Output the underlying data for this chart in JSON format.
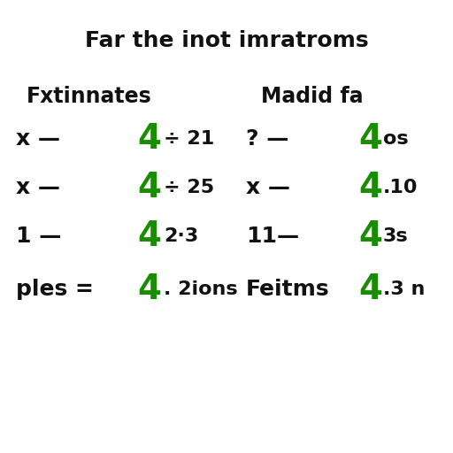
{
  "title": "Far the inot imratroms",
  "col1_header": "Fxtinnates",
  "col2_header": "Madid fa",
  "background_color": "#ffffff",
  "black_color": "#111111",
  "green_color": "#1a8c00",
  "rows": [
    {
      "left_prefix": "x —",
      "left_green": "4",
      "left_suffix": "÷ 21",
      "right_prefix": "? —",
      "right_green": "4",
      "right_suffix": "os"
    },
    {
      "left_prefix": "x —",
      "left_green": "4",
      "left_suffix": "÷ 25",
      "right_prefix": "x —",
      "right_green": "4",
      "right_suffix": ".10"
    },
    {
      "left_prefix": "1 —",
      "left_green": "4",
      "left_suffix": "2⋅3",
      "right_prefix": "11—",
      "right_green": "4",
      "right_suffix": "3s"
    },
    {
      "left_prefix": "ples =",
      "left_green": "4",
      "left_suffix": ". 2ions",
      "right_prefix": "Feitms",
      "right_green": "4",
      "right_suffix": ".3 n"
    }
  ],
  "title_fontsize": 18,
  "header_fontsize": 17,
  "prefix_fontsize": 18,
  "green_fontsize": 28,
  "suffix_fontsize": 16
}
